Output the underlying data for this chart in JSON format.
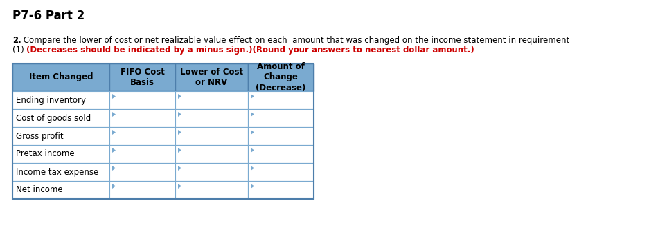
{
  "title": "P7-6 Part 2",
  "instruction_2_bold": "2.",
  "instruction_line1_rest": " Compare the lower of cost or net realizable value effect on each  amount that was changed on the income statement in requirement",
  "instruction_line2_plain": "(1). ",
  "instruction_line2_bold_red": "(Decreases should be indicated by a minus sign.)(Round your answers to nearest dollar amount.)",
  "col_headers": [
    "Item Changed",
    "FIFO Cost\nBasis",
    "Lower of Cost\nor NRV",
    "Amount of\nChange\n(Decrease)"
  ],
  "rows": [
    "Ending inventory",
    "Cost of goods sold",
    "Gross profit",
    "Pretax income",
    "Income tax expense",
    "Net income"
  ],
  "header_bg": "#7aaad0",
  "header_border": "#4d7eab",
  "cell_bg": "#ffffff",
  "cell_border": "#7aaad0",
  "title_fontsize": 12,
  "header_fontsize": 8.5,
  "row_fontsize": 8.5,
  "instruction_fontsize": 8.5
}
